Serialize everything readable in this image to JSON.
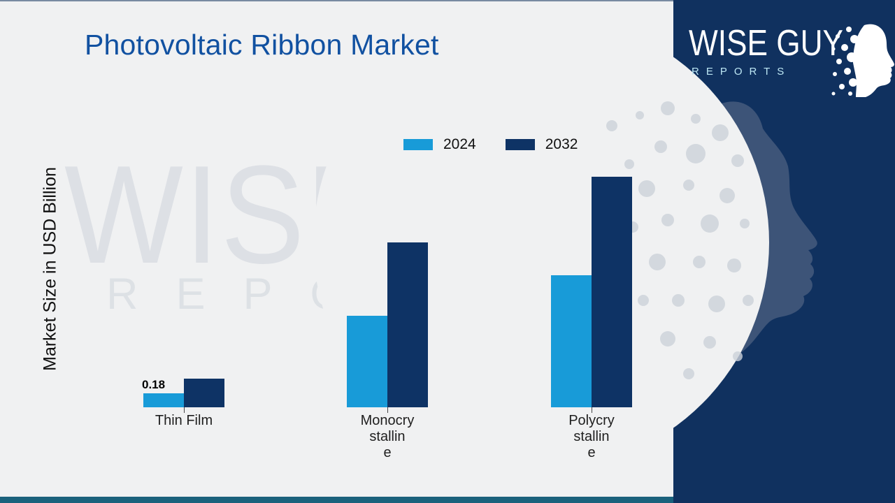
{
  "title": "Photovoltaic Ribbon Market",
  "logo": {
    "brand_top": "WISE GUY",
    "brand_bottom": "REPORTS"
  },
  "watermark": {
    "line1": "WISE GUY",
    "line2": "REPORTS"
  },
  "chart_data": {
    "type": "bar",
    "title": "Photovoltaic Ribbon Market",
    "xlabel": "",
    "ylabel": "Market Size in USD Billion",
    "categories": [
      "Thin Film",
      "Monocrystalline",
      "Polycrystalline"
    ],
    "category_display": [
      "Thin Film",
      "Monocry\nstallin\ne",
      "Polycry\nstallin\ne"
    ],
    "series": [
      {
        "name": "2024",
        "color": "#189bd8",
        "values": [
          0.18,
          1.18,
          1.7
        ]
      },
      {
        "name": "2032",
        "color": "#0e3365",
        "values": [
          0.37,
          2.12,
          2.97
        ]
      }
    ],
    "data_label": {
      "category": "Thin Film",
      "series": "2024",
      "text": "0.18"
    },
    "ylim": [
      0,
      3
    ],
    "grid": false,
    "axis_ticks_visible": true,
    "legend_position": "top"
  },
  "colors": {
    "background": "#f0f1f2",
    "series_2024_blue": "#189bd8",
    "series_2032_navy": "#0e3365",
    "panel_navy": "#10315f",
    "title_blue": "#1151a1",
    "bottom_bar_teal": "#1a617c",
    "watermark_gray": "#ccd1d9",
    "face_slate": "#3d5478"
  }
}
